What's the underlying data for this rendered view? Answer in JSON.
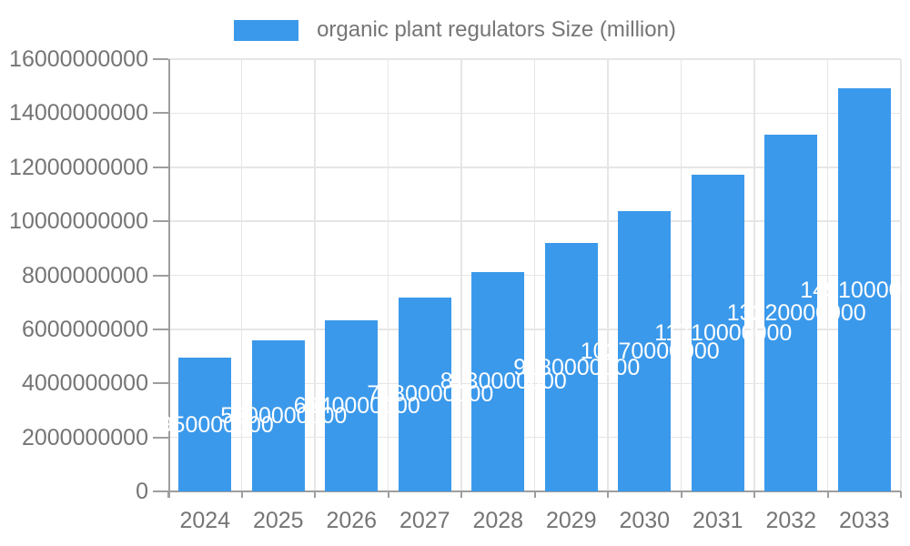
{
  "legend": {
    "label": "organic plant regulators Size (million)"
  },
  "chart_data": {
    "type": "bar",
    "title": "",
    "xlabel": "",
    "ylabel": "",
    "categories": [
      "2024",
      "2025",
      "2026",
      "2027",
      "2028",
      "2029",
      "2030",
      "2031",
      "2032",
      "2033"
    ],
    "series": [
      {
        "name": "organic plant regulators Size (million)",
        "values": [
          4950000000,
          5600000000,
          6340000000,
          7180000000,
          8130000000,
          9180000000,
          10370000000,
          11710000000,
          13220000000,
          14910000000
        ]
      }
    ],
    "value_labels": [
      "4950000000",
      "5600000000",
      "6340000000",
      "7180000000",
      "8130000000",
      "9180000000",
      "10370000000",
      "11710000000",
      "13220000000",
      "14910000000"
    ],
    "ylim": [
      0,
      16000000000
    ],
    "ytick_step": 2000000000,
    "ytick_labels": [
      "0",
      "2000000000",
      "4000000000",
      "6000000000",
      "8000000000",
      "10000000000",
      "12000000000",
      "14000000000",
      "16000000000"
    ],
    "grid": true,
    "legend_position": "top",
    "colors": {
      "bar": "#3B99EB",
      "value_label": "#FFFFFF",
      "axis_text": "#757575",
      "gridline": "#E6E6E6",
      "axis_line": "#9E9E9E",
      "background": "#FFFFFF"
    }
  }
}
